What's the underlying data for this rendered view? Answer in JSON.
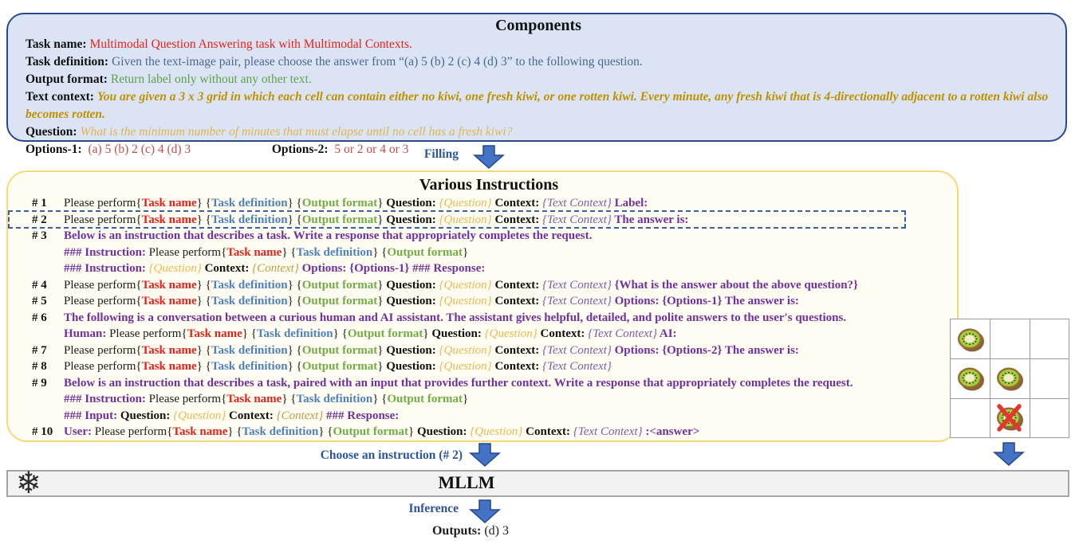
{
  "components": {
    "title": "Components",
    "rows": [
      {
        "label": "Task name:",
        "value": "Multimodal Question Answering task with Multimodal Contexts.",
        "style": "red"
      },
      {
        "label": "Task definition:",
        "value": "Given the text-image pair, please choose the answer from “(a) 5 (b) 2 (c) 4 (d) 3” to the following question.",
        "style": "blue"
      },
      {
        "label": "Output format:",
        "value": "Return label only without any other text.",
        "style": "green"
      },
      {
        "label": "Text context:",
        "value": "You are given a 3 x 3 grid in which each cell can contain either no kiwi, one fresh kiwi, or one rotten kiwi. Every minute, any fresh kiwi that is 4-directionally adjacent to a rotten kiwi also becomes rotten.",
        "style": "goldb"
      },
      {
        "label": "Question:",
        "value": "What is the minimum number of minutes that must elapse until no cell has a fresh kiwi?",
        "style": "gold"
      }
    ],
    "options": {
      "label1": "Options-1:",
      "value1": "(a) 5 (b) 2 (c) 4 (d) 3",
      "label2": "Options-2:",
      "value2": "5 or 2 or 4 or 3"
    }
  },
  "flow": {
    "filling": "Filling",
    "choose": "Choose an instruction (# 2)",
    "inference": "Inference",
    "outputs_label": "Outputs:",
    "outputs_value": "(d) 3"
  },
  "instructions": {
    "title": "Various Instructions",
    "std_prefix": [
      [
        "p",
        "Please perform"
      ],
      [
        "p",
        "{"
      ],
      [
        "r",
        "Task name"
      ],
      [
        "p",
        "} {"
      ],
      [
        "bl",
        "Task definition"
      ],
      [
        "p",
        "} {"
      ],
      [
        "g",
        "Output format"
      ],
      [
        "p",
        "} "
      ],
      [
        "b",
        "Question: "
      ],
      [
        "q",
        "{Question}"
      ],
      [
        "b",
        " Context: "
      ],
      [
        "t",
        "{Text Context}"
      ]
    ],
    "items": [
      {
        "num": "# 1",
        "lines": [
          [
            [
              "std",
              ""
            ],
            [
              "u",
              " Label:"
            ]
          ]
        ]
      },
      {
        "num": "# 2",
        "selected": true,
        "lines": [
          [
            [
              "std",
              ""
            ],
            [
              "u",
              " The answer is:"
            ]
          ]
        ]
      },
      {
        "num": "# 3",
        "lines": [
          [
            [
              "u",
              "Below is an instruction that describes a task. Write a response that appropriately completes the request."
            ]
          ],
          [
            [
              "u",
              "### Instruction:"
            ],
            [
              "p",
              " Please perform"
            ],
            [
              "p",
              "{"
            ],
            [
              "r",
              "Task name"
            ],
            [
              "p",
              "} {"
            ],
            [
              "bl",
              "Task definition"
            ],
            [
              "p",
              "}  {"
            ],
            [
              "g",
              "Output format"
            ],
            [
              "p",
              "}"
            ]
          ],
          [
            [
              "u",
              "### Instruction:"
            ],
            [
              "p",
              "  "
            ],
            [
              "q",
              "{Question}"
            ],
            [
              "b",
              " Context: "
            ],
            [
              "c",
              "{Context}"
            ],
            [
              "u",
              " Options: {Options-1} ### Response:"
            ]
          ]
        ]
      },
      {
        "num": "# 4",
        "lines": [
          [
            [
              "std",
              ""
            ],
            [
              "u",
              " {What is the answer about the above question?}"
            ]
          ]
        ]
      },
      {
        "num": "# 5",
        "lines": [
          [
            [
              "std",
              ""
            ],
            [
              "u",
              " Options: {Options-1} The answer is:"
            ]
          ]
        ]
      },
      {
        "num": "# 6",
        "lines": [
          [
            [
              "u",
              "The following is a conversation between a curious human and AI assistant. The assistant gives helpful, detailed, and polite answers to the user's questions."
            ]
          ],
          [
            [
              "u",
              "Human:"
            ],
            [
              "p",
              " Please perform"
            ],
            [
              "p",
              "{"
            ],
            [
              "r",
              "Task name"
            ],
            [
              "p",
              "} {"
            ],
            [
              "bl",
              "Task definition"
            ],
            [
              "p",
              "} {"
            ],
            [
              "g",
              "Output format"
            ],
            [
              "p",
              "} "
            ],
            [
              "b",
              "Question: "
            ],
            [
              "q",
              "{Question}"
            ],
            [
              "b",
              " Context: "
            ],
            [
              "t",
              "{Text Context}"
            ],
            [
              "u",
              " AI:"
            ]
          ]
        ]
      },
      {
        "num": "# 7",
        "lines": [
          [
            [
              "std",
              ""
            ],
            [
              "u",
              " Options: {Options-2} The answer is:"
            ]
          ]
        ]
      },
      {
        "num": "# 8",
        "lines": [
          [
            [
              "std",
              ""
            ]
          ]
        ]
      },
      {
        "num": "# 9",
        "lines": [
          [
            [
              "u",
              "Below is an instruction that describes a task, paired with an input that provides further context. Write a response that appropriately completes the request."
            ]
          ],
          [
            [
              "u",
              "### Instruction:"
            ],
            [
              "p",
              "  Please perform"
            ],
            [
              "p",
              "{"
            ],
            [
              "r",
              "Task name"
            ],
            [
              "p",
              "} {"
            ],
            [
              "bl",
              "Task definition"
            ],
            [
              "p",
              "} {"
            ],
            [
              "g",
              "Output format"
            ],
            [
              "p",
              "}"
            ]
          ],
          [
            [
              "u",
              "### Input: "
            ],
            [
              "b",
              "Question: "
            ],
            [
              "q",
              "{Question}"
            ],
            [
              "b",
              " Context: "
            ],
            [
              "c",
              "{Context}"
            ],
            [
              "u",
              " ### Response:"
            ]
          ]
        ]
      },
      {
        "num": "# 10",
        "lines": [
          [
            [
              "u",
              "User:"
            ],
            [
              "p",
              " Please perform"
            ],
            [
              "p",
              "{"
            ],
            [
              "r",
              "Task name"
            ],
            [
              "p",
              "} {"
            ],
            [
              "bl",
              "Task definition"
            ],
            [
              "p",
              "} {"
            ],
            [
              "g",
              "Output format"
            ],
            [
              "p",
              "} "
            ],
            [
              "b",
              "Question: "
            ],
            [
              "q",
              "{Question}"
            ],
            [
              "b",
              " Context: "
            ],
            [
              "t",
              "{Text Context}"
            ],
            [
              "u",
              " :<answer>"
            ]
          ]
        ]
      }
    ]
  },
  "grid": {
    "rows": 3,
    "cols": 3,
    "cells": [
      [
        "fresh",
        "",
        ""
      ],
      [
        "fresh",
        "fresh",
        ""
      ],
      [
        "",
        "rotten",
        ""
      ]
    ]
  },
  "mllm": {
    "label": "MLLM",
    "frozen_icon": "❄︎"
  },
  "colors": {
    "components_bg": "#dbe4f4",
    "components_border": "#2a4a8c",
    "instructions_bg": "#fffcf2",
    "instructions_border": "#f4d97b",
    "arrow_fill": "#4472c4",
    "arrow_stroke": "#24478f",
    "flow_label": "#2d5699",
    "task_name_red": "#e3231a",
    "task_definition_blue": "#4f81bd",
    "output_format_green": "#70ad47",
    "prompt_purple": "#7030a0",
    "context_gold": "#bf9000",
    "options_red": "#c0504d"
  }
}
